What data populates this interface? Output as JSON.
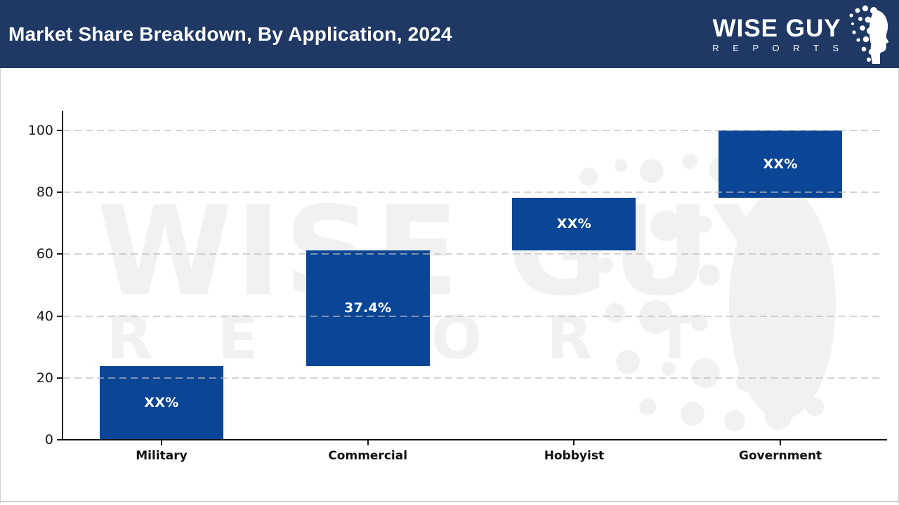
{
  "header": {
    "title": "Market Share Breakdown, By Application, 2024",
    "logo": {
      "line1": "WISE GUY",
      "line2": "R E P O R T S"
    }
  },
  "watermark": {
    "line1": "WISE GUY",
    "line2": "REPORTS"
  },
  "colors": {
    "header_bg": "#1f3864",
    "bar_fill": "#0a4596",
    "bar_label_text": "#ffffff",
    "axis": "#111111",
    "tick_text": "#1a1a1a",
    "gridline": "#c9c9c9",
    "watermark": "#f1f1f1",
    "background": "#ffffff"
  },
  "chart_data": {
    "type": "bar",
    "subtype": "waterfall-floating-bars",
    "title": "Market Share Breakdown, By Application, 2024",
    "categories": [
      "Military",
      "Commercial",
      "Hobbyist",
      "Government"
    ],
    "segments": [
      {
        "category": "Military",
        "start": 0,
        "end": 23.9,
        "value": 23.9,
        "label": "XX%"
      },
      {
        "category": "Commercial",
        "start": 23.9,
        "end": 61.3,
        "value": 37.4,
        "label": "37.4%"
      },
      {
        "category": "Hobbyist",
        "start": 61.3,
        "end": 78.3,
        "value": 17.0,
        "label": "XX%"
      },
      {
        "category": "Government",
        "start": 78.3,
        "end": 100,
        "value": 21.7,
        "label": "XX%"
      }
    ],
    "xlabel": "",
    "ylabel": "",
    "ylim": [
      0,
      100
    ],
    "yticks": [
      0,
      20,
      40,
      60,
      80,
      100
    ],
    "grid": "horizontal-dashed-over-bars",
    "legend": false
  }
}
